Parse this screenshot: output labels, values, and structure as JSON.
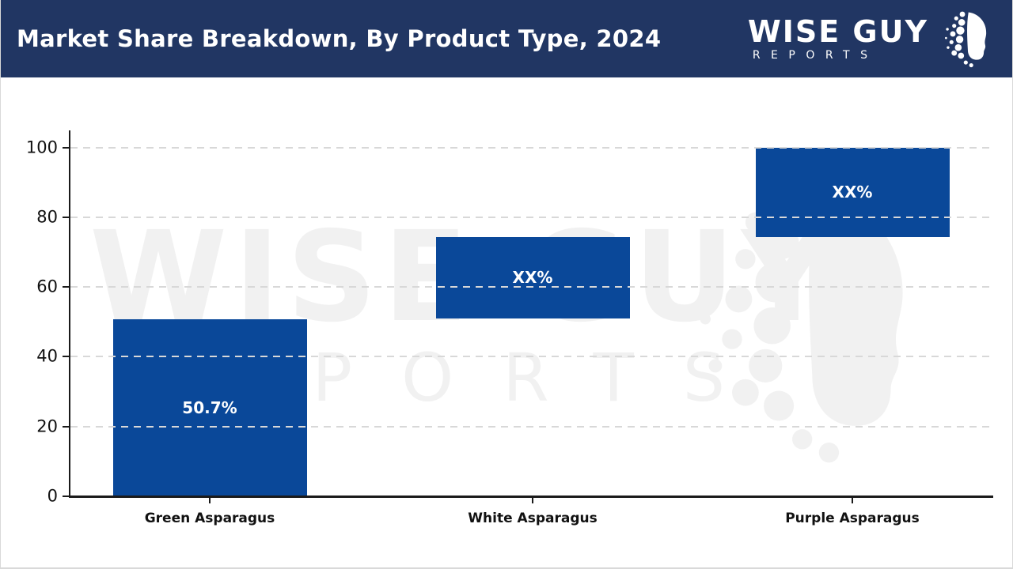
{
  "header": {
    "title": "Market Share Breakdown, By Product Type, 2024",
    "logo": {
      "line1": "WISE GUY",
      "line2": "REPORTS"
    }
  },
  "watermark": {
    "line1": "WISE GUY",
    "line2": "REPORTS"
  },
  "colors": {
    "header_bg": "#213663",
    "bar": "#0a4899",
    "grid": "#d8d8d8",
    "axis": "#1a1a1a",
    "watermark": "#f1f1f1",
    "bar_label_text": "#ffffff",
    "tick_text": "#111111"
  },
  "chart_data": {
    "type": "bar",
    "subtype": "waterfall",
    "title": "Market Share Breakdown, By Product Type, 2024",
    "categories": [
      "Green Asparagus",
      "White Asparagus",
      "Purple Asparagus"
    ],
    "bars": [
      {
        "category": "Green Asparagus",
        "base": 0,
        "top": 50.7,
        "label": "50.7%"
      },
      {
        "category": "White Asparagus",
        "base": 51.0,
        "top": 74.4,
        "label": "XX%"
      },
      {
        "category": "Purple Asparagus",
        "base": 74.4,
        "top": 100,
        "label": "XX%"
      }
    ],
    "xlabel": "",
    "ylabel": "",
    "ylim": [
      0,
      100
    ],
    "yticks": [
      0,
      20,
      40,
      60,
      80,
      100
    ],
    "grid": "horizontal-dashed",
    "legend": "none",
    "bar_color": "#0a4899"
  }
}
